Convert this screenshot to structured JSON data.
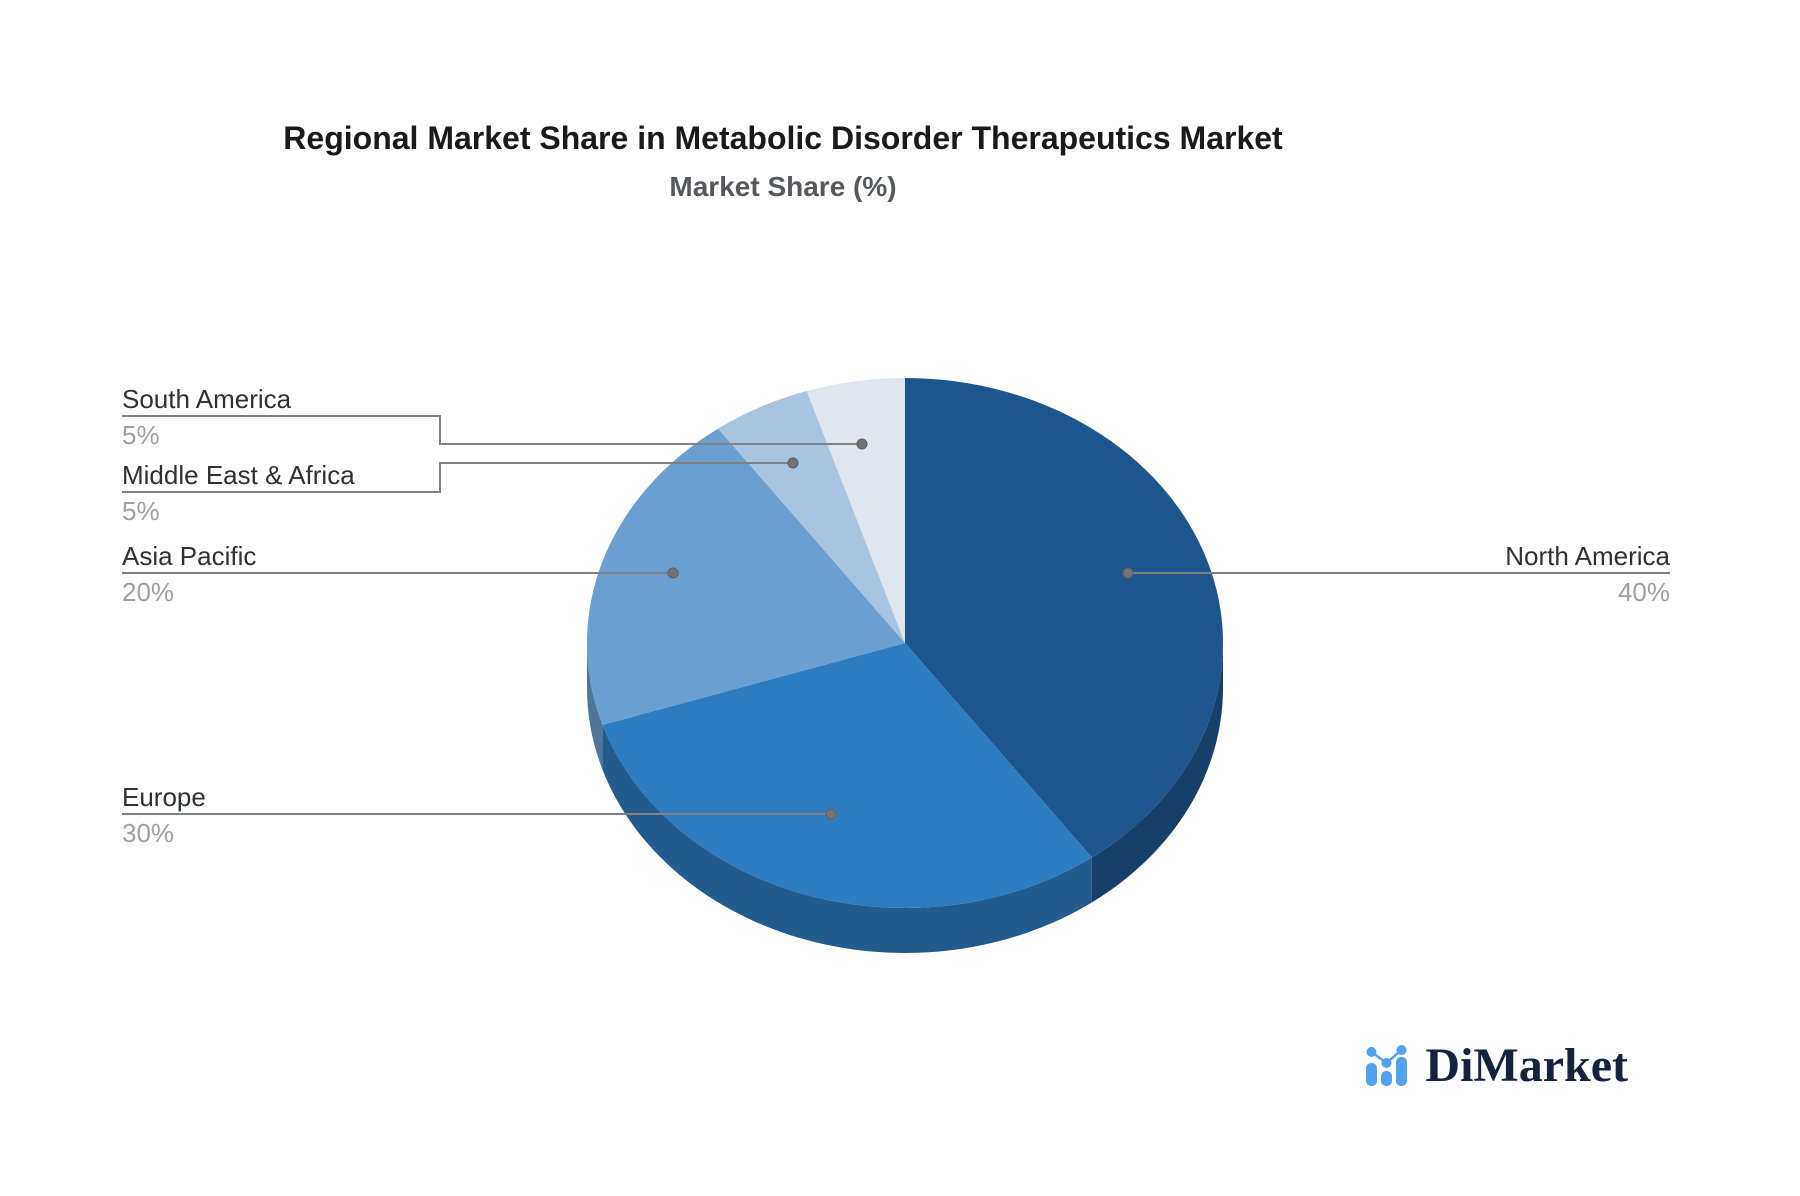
{
  "title": "Regional Market Share in Metabolic Disorder Therapeutics Market",
  "subtitle": "Market Share (%)",
  "brand": {
    "name": "DiMarket",
    "icon": "bar-chart-logo-icon",
    "icon_color": "#4FA3F2",
    "text_color": "#16233c"
  },
  "chart_data": {
    "type": "pie",
    "style": "3d",
    "title": "Regional Market Share in Metabolic Disorder Therapeutics Market",
    "subtitle": "Market Share (%)",
    "unit": "%",
    "direction": "clockwise",
    "start_angle_deg": 0,
    "labels_position": "callout",
    "legend_position": "none",
    "connector_color": "#7f8184",
    "slices": [
      {
        "label": "North America",
        "value": 40,
        "display": "40%",
        "color": "#1D568F"
      },
      {
        "label": "Europe",
        "value": 30,
        "display": "30%",
        "color": "#2E7CC0"
      },
      {
        "label": "Asia Pacific",
        "value": 20,
        "display": "20%",
        "color": "#699FD1"
      },
      {
        "label": "Middle East & Africa",
        "value": 5,
        "display": "5%",
        "color": "#A9C4DE"
      },
      {
        "label": "South America",
        "value": 5,
        "display": "5%",
        "color": "#E0E6EE"
      }
    ]
  }
}
